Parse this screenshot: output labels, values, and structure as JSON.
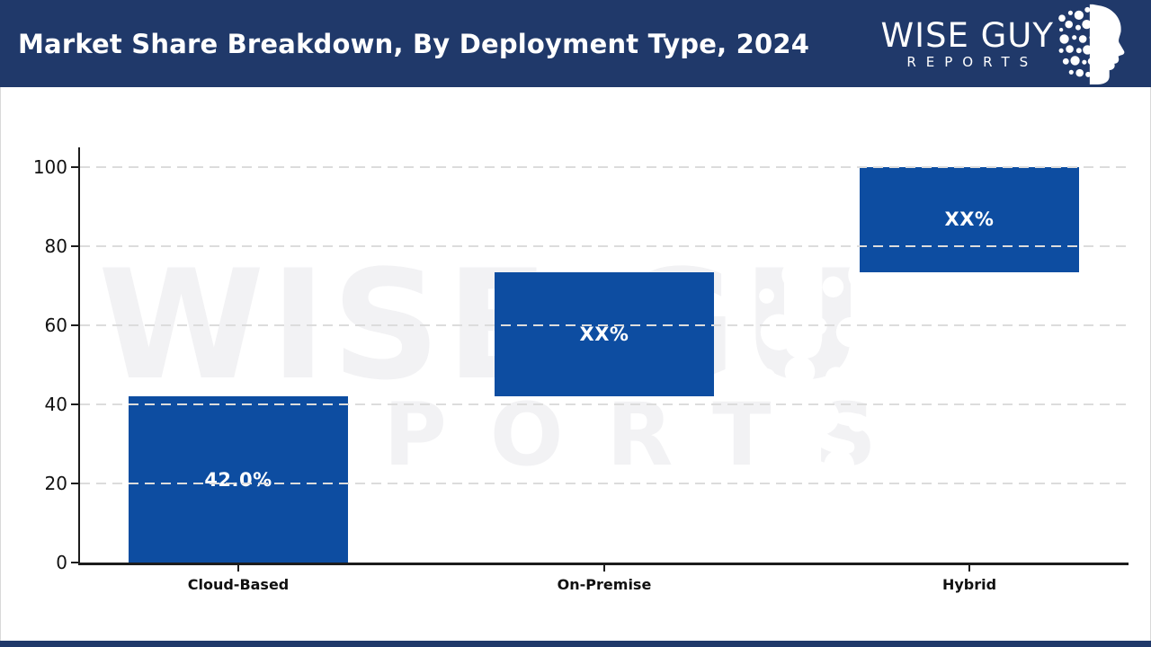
{
  "header": {
    "title": "Market Share Breakdown, By Deployment Type, 2024",
    "brand": {
      "line1": "WISE GUY",
      "line2": "REPORTS",
      "face_icon": "dotted-face-profile"
    }
  },
  "watermark": {
    "line1": "WISE GUY",
    "line2": "REPORTS",
    "face_icon": "dotted-face-profile"
  },
  "colors": {
    "header_bg": "#20396a",
    "bar": "#0d4da1",
    "grid": "#dcdcdc",
    "axis": "#1c1c1c",
    "watermark": "#f2f2f4",
    "bar_label": "#ffffff",
    "tick_text": "#111111"
  },
  "chart_data": {
    "type": "bar",
    "variant": "floating-segment-waterfall",
    "title": "Market Share Breakdown, By Deployment Type, 2024",
    "categories": [
      "Cloud-Based",
      "On-Premise",
      "Hybrid"
    ],
    "segments": [
      {
        "category": "Cloud-Based",
        "start": 0,
        "end": 42,
        "label": "42.0%"
      },
      {
        "category": "On-Premise",
        "start": 42,
        "end": 73.5,
        "label": "XX%"
      },
      {
        "category": "Hybrid",
        "start": 73.5,
        "end": 100,
        "label": "XX%"
      }
    ],
    "yticks": [
      0,
      20,
      40,
      60,
      80,
      100
    ],
    "ylim": [
      0,
      105
    ],
    "xlabel": "",
    "ylabel": "",
    "grid": "horizontal-dashed-over-bars",
    "legend": false
  }
}
